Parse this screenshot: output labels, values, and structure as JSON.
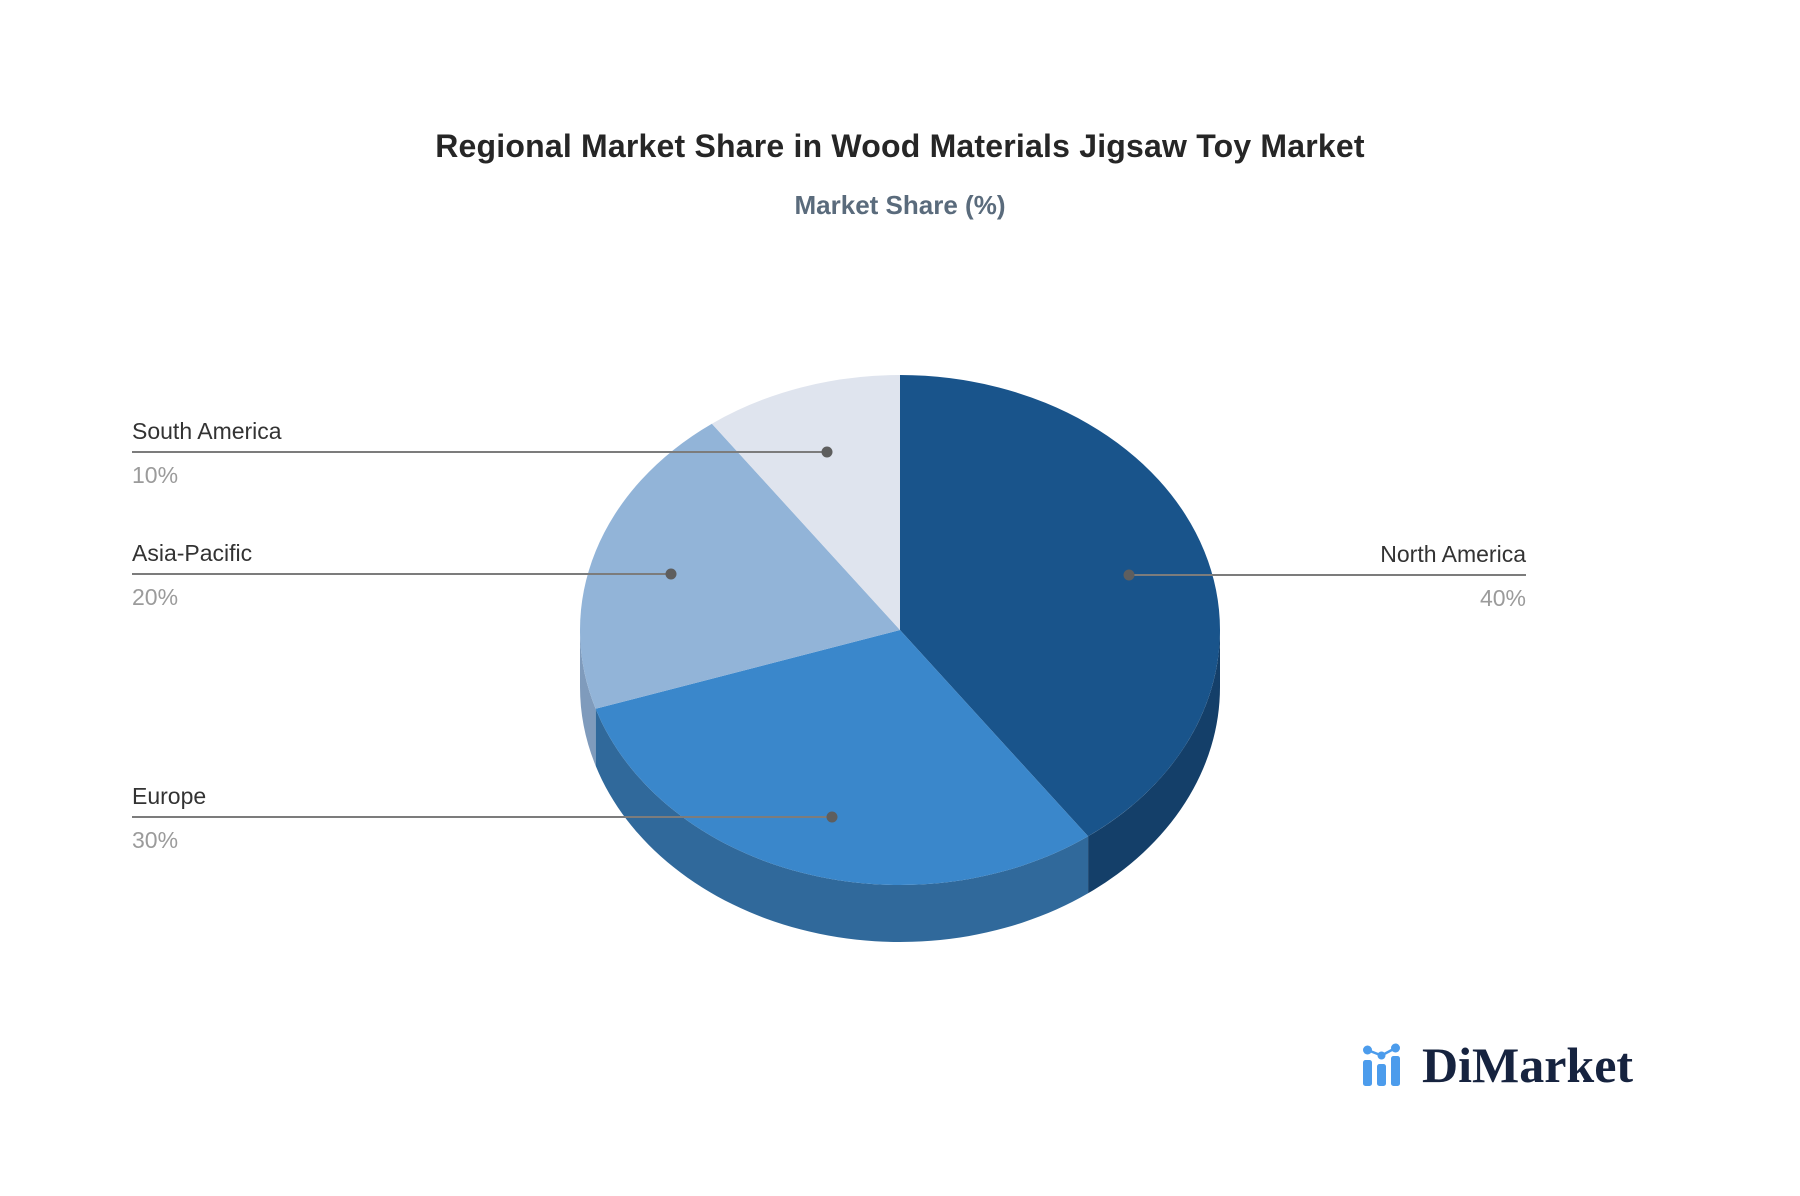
{
  "title": "Regional Market Share in Wood Materials Jigsaw Toy Market",
  "subtitle": "Market Share (%)",
  "brand": {
    "name": "DiMarket",
    "icon": "mini-bar-chart-icon",
    "text_color": "#16233f",
    "accent_color": "#4c9cec"
  },
  "chart_data": {
    "type": "pie",
    "style": "3d",
    "title": "Regional Market Share in Wood Materials Jigsaw Toy Market",
    "subtitle": "Market Share (%)",
    "unit": "%",
    "start_angle": "12-o-clock",
    "direction": "clockwise",
    "legend_position": "callout-labels",
    "slices": [
      {
        "label": "North America",
        "value": 40,
        "display": "40%",
        "color": "#19548b",
        "side_color": "#143f69"
      },
      {
        "label": "Europe",
        "value": 30,
        "display": "30%",
        "color": "#3a87cb",
        "side_color": "#30699b"
      },
      {
        "label": "Asia-Pacific",
        "value": 20,
        "display": "20%",
        "color": "#92b4d8",
        "side_color": "#7f9bbc"
      },
      {
        "label": "South America",
        "value": 10,
        "display": "10%",
        "color": "#dfe4ee",
        "side_color": "#c2cbd9"
      }
    ],
    "callout_line_color": "#7c7c7c",
    "callout_dot_color": "#5e5e5e",
    "label_color": "#333333",
    "value_color": "#9b9b9b"
  }
}
